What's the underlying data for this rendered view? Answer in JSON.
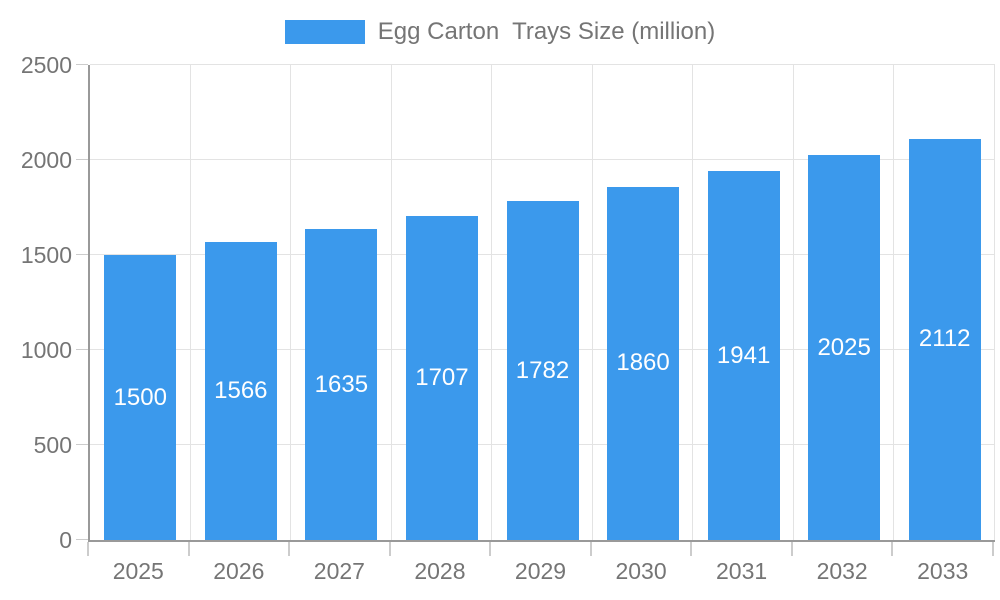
{
  "chart_data": {
    "type": "bar",
    "title": "Egg Carton  Trays Size (million)",
    "legend": [
      "Egg Carton  Trays Size (million)"
    ],
    "legend_position": "top",
    "categories": [
      "2025",
      "2026",
      "2027",
      "2028",
      "2029",
      "2030",
      "2031",
      "2032",
      "2033"
    ],
    "series": [
      {
        "name": "Egg Carton  Trays Size (million)",
        "values": [
          1500,
          1566,
          1635,
          1707,
          1782,
          1860,
          1941,
          2025,
          2112
        ]
      }
    ],
    "xlabel": "",
    "ylabel": "",
    "ylim": [
      0,
      2500
    ],
    "yticks": [
      0,
      500,
      1000,
      1500,
      2000,
      2500
    ],
    "grid": true,
    "value_labels": "inside-center",
    "colors": {
      "bar": "#3B99EC",
      "value_text": "#FFFFFF",
      "axis": "#999999",
      "gridline": "#E3E3E3",
      "tick": "#CCCCCC",
      "axis_text": "#757575",
      "background": "#FFFFFF"
    }
  }
}
